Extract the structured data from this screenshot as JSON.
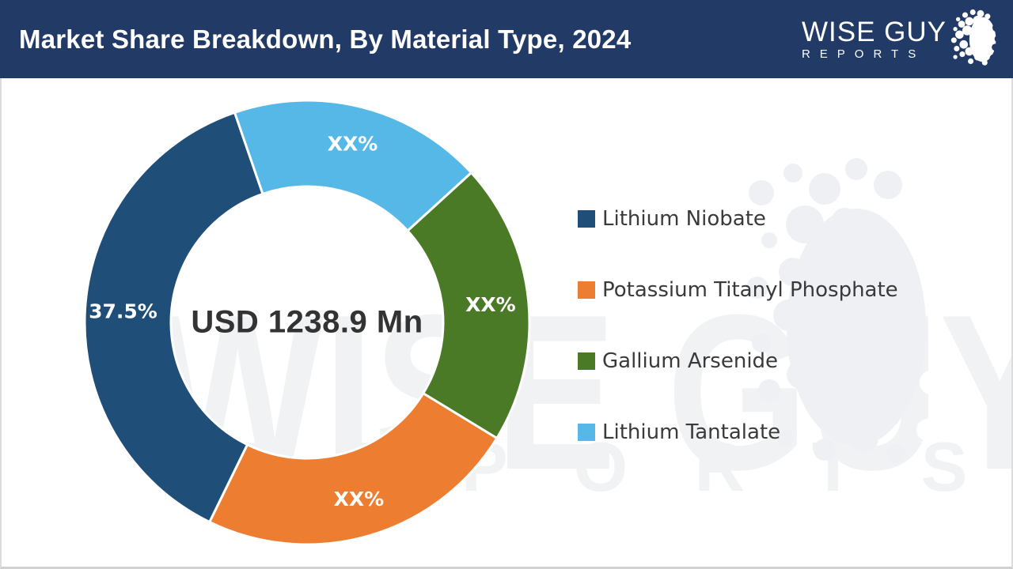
{
  "header": {
    "title": "Market Share Breakdown, By Material Type, 2024",
    "logo_line1": "WISE GUY",
    "logo_line2": "REPORTS",
    "bg_color": "#213a66"
  },
  "watermark": {
    "line1": "WISE GUY",
    "line2": "R E P O R T S"
  },
  "chart_data": {
    "type": "pie",
    "subtype": "donut",
    "title": "Market Share Breakdown, By Material Type, 2024",
    "center_label": "USD 1238.9 Mn",
    "start_angle_deg": 109,
    "direction": "counterclockwise",
    "legend_position": "right",
    "segments": [
      {
        "label": "Lithium Niobate",
        "display_pct": "37.5%",
        "value_pct": 37.5,
        "color": "#1f4e78"
      },
      {
        "label": "Potassium Titanyl Phosphate",
        "display_pct": "XX%",
        "value_pct": 23.5,
        "color": "#ed7d31"
      },
      {
        "label": "Gallium Arsenide",
        "display_pct": "XX%",
        "value_pct": 20.5,
        "color": "#4a7a26"
      },
      {
        "label": "Lithium Tantalate",
        "display_pct": "XX%",
        "value_pct": 18.5,
        "color": "#56b8e6"
      }
    ]
  }
}
